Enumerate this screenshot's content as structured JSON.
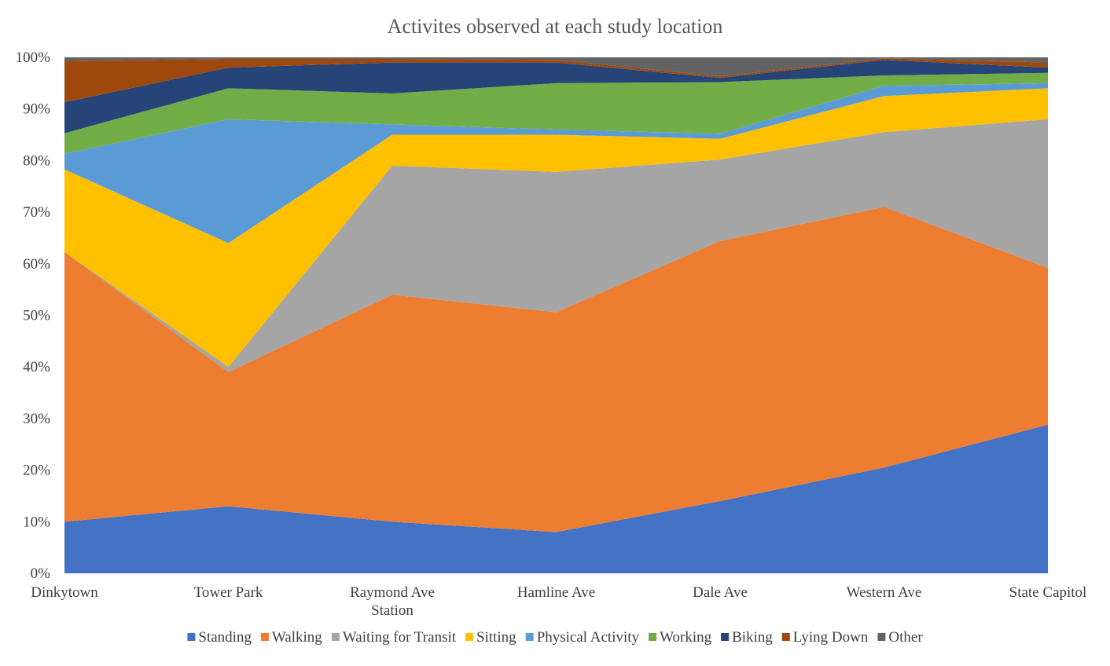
{
  "chart_data": {
    "type": "area",
    "stacked": true,
    "percent": true,
    "title": "Activites observed at each study location",
    "categories": [
      [
        "Dinkytown"
      ],
      [
        "Tower Park"
      ],
      [
        "Raymond Ave",
        "Station"
      ],
      [
        "Hamline Ave"
      ],
      [
        "Dale Ave"
      ],
      [
        "Western Ave"
      ],
      [
        "State Capitol"
      ]
    ],
    "ylim": [
      0,
      100
    ],
    "y_ticks": [
      "0%",
      "10%",
      "20%",
      "30%",
      "40%",
      "50%",
      "60%",
      "70%",
      "80%",
      "90%",
      "100%"
    ],
    "grid": false,
    "legend_position": "bottom",
    "series": [
      {
        "name": "Standing",
        "color": "#4472C4",
        "values": [
          10,
          13,
          10,
          8,
          14,
          20.5,
          28.8
        ]
      },
      {
        "name": "Walking",
        "color": "#ED7D31",
        "values": [
          52.3,
          26,
          44,
          42.6,
          50.4,
          50.5,
          30.4
        ]
      },
      {
        "name": "Waiting for Transit",
        "color": "#A5A5A5",
        "values": [
          0,
          1,
          25,
          27.2,
          15.8,
          14.5,
          28.8
        ]
      },
      {
        "name": "Sitting",
        "color": "#FFC000",
        "values": [
          16,
          24,
          6,
          7.2,
          4,
          7,
          6
        ]
      },
      {
        "name": "Physical Activity",
        "color": "#5B9BD5",
        "values": [
          3,
          24,
          2,
          1,
          1,
          2,
          1
        ]
      },
      {
        "name": "Working",
        "color": "#70AD47",
        "values": [
          4,
          6,
          6,
          9,
          10,
          2,
          2
        ]
      },
      {
        "name": "Biking",
        "color": "#264478",
        "values": [
          6,
          4,
          6,
          4,
          0.8,
          3,
          1
        ]
      },
      {
        "name": "Lying Down",
        "color": "#9E480E",
        "values": [
          8,
          1.7,
          0.7,
          0.5,
          0.3,
          0.3,
          1
        ]
      },
      {
        "name": "Other",
        "color": "#636363",
        "values": [
          0.7,
          0.3,
          0.3,
          0.5,
          3.7,
          0.2,
          1
        ]
      }
    ]
  }
}
